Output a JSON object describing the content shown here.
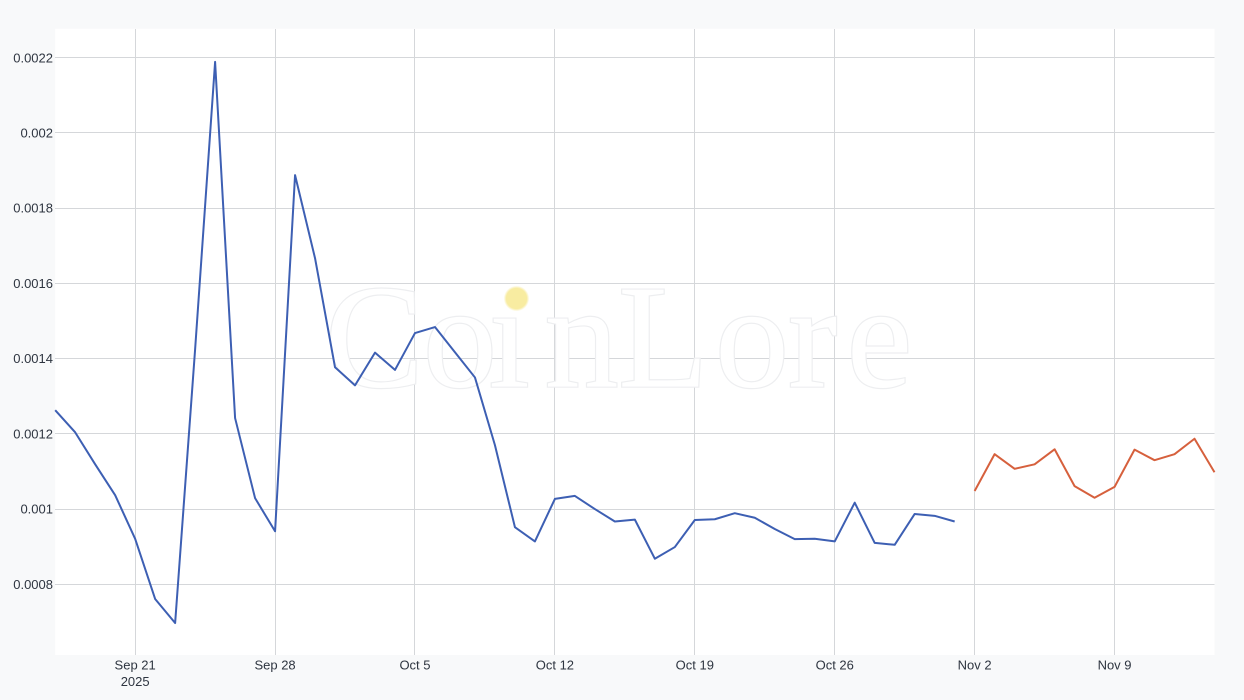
{
  "colors": {
    "page_background": "#f8f9fa",
    "plot_background": "#ffffff",
    "grid_line": "#d5d7da",
    "tick_label": "#2e3540",
    "history_line": "#3d5fb3",
    "prediction_line": "#d6603d",
    "watermark_outline": "#edeef0",
    "watermark_fill": "#ffffff",
    "watermark_dot": "#f8eca1"
  },
  "chart_data": {
    "type": "line",
    "title": "",
    "xlabel": "",
    "ylabel": "",
    "grid": true,
    "legend": false,
    "x_axis": {
      "unit": "day",
      "total_points": 59,
      "ticks": [
        {
          "index": 4,
          "label": "Sep 21",
          "sublabel": "2025"
        },
        {
          "index": 11,
          "label": "Sep 28"
        },
        {
          "index": 18,
          "label": "Oct 5"
        },
        {
          "index": 25,
          "label": "Oct 12"
        },
        {
          "index": 32,
          "label": "Oct 19"
        },
        {
          "index": 39,
          "label": "Oct 26"
        },
        {
          "index": 46,
          "label": "Nov 2"
        },
        {
          "index": 53,
          "label": "Nov 9"
        }
      ]
    },
    "y_axis": {
      "range": [
        0.000612,
        0.002277
      ],
      "ticks": [
        {
          "value": 0.0008,
          "label": "0.0008"
        },
        {
          "value": 0.001,
          "label": "0.001"
        },
        {
          "value": 0.0012,
          "label": "0.0012"
        },
        {
          "value": 0.0014,
          "label": "0.0014"
        },
        {
          "value": 0.0016,
          "label": "0.0016"
        },
        {
          "value": 0.0018,
          "label": "0.0018"
        },
        {
          "value": 0.002,
          "label": "0.002"
        },
        {
          "value": 0.0022,
          "label": "0.0022"
        }
      ]
    },
    "series": [
      {
        "name": "price-history",
        "color": "#3d5fb3",
        "start_index": 0,
        "dates": [
          "Sep 17",
          "Sep 18",
          "Sep 19",
          "Sep 20",
          "Sep 21",
          "Sep 22",
          "Sep 23",
          "Sep 24",
          "Sep 25",
          "Sep 26",
          "Sep 27",
          "Sep 28",
          "Sep 29",
          "Sep 30",
          "Oct 1",
          "Oct 2",
          "Oct 3",
          "Oct 4",
          "Oct 5",
          "Oct 6",
          "Oct 7",
          "Oct 8",
          "Oct 9",
          "Oct 10",
          "Oct 11",
          "Oct 12",
          "Oct 13",
          "Oct 14",
          "Oct 15",
          "Oct 16",
          "Oct 17",
          "Oct 18",
          "Oct 19",
          "Oct 20",
          "Oct 21",
          "Oct 22",
          "Oct 23",
          "Oct 24",
          "Oct 25",
          "Oct 26",
          "Oct 27",
          "Oct 28",
          "Oct 29",
          "Oct 30",
          "Oct 31",
          "Nov 1"
        ],
        "values": [
          0.001263,
          0.001204,
          0.001119,
          0.001037,
          0.000921,
          0.000761,
          0.000697,
          0.001425,
          0.002189,
          0.001242,
          0.001029,
          0.000941,
          0.001888,
          0.001667,
          0.001377,
          0.001329,
          0.001416,
          0.00137,
          0.001468,
          0.001484,
          0.001417,
          0.00135,
          0.00117,
          0.000952,
          0.000914,
          0.001027,
          0.001035,
          0.001,
          0.000967,
          0.000972,
          0.000868,
          0.000899,
          0.000971,
          0.000973,
          0.000989,
          0.000977,
          0.000947,
          0.00092,
          0.000921,
          0.000914,
          0.001017,
          0.00091,
          0.000905,
          0.000987,
          0.000982,
          0.000967
        ]
      },
      {
        "name": "price-prediction",
        "color": "#d6603d",
        "start_index": 46,
        "dates": [
          "Nov 2",
          "Nov 3",
          "Nov 4",
          "Nov 5",
          "Nov 6",
          "Nov 7",
          "Nov 8",
          "Nov 9",
          "Nov 10",
          "Nov 11",
          "Nov 12",
          "Nov 13",
          "Nov 14"
        ],
        "values": [
          0.001048,
          0.001146,
          0.001107,
          0.001119,
          0.001159,
          0.001061,
          0.00103,
          0.001059,
          0.001158,
          0.00113,
          0.001146,
          0.001187,
          0.001098
        ]
      }
    ],
    "watermark": {
      "text": "CoinLore",
      "dot_color": "#f8eca1"
    }
  }
}
